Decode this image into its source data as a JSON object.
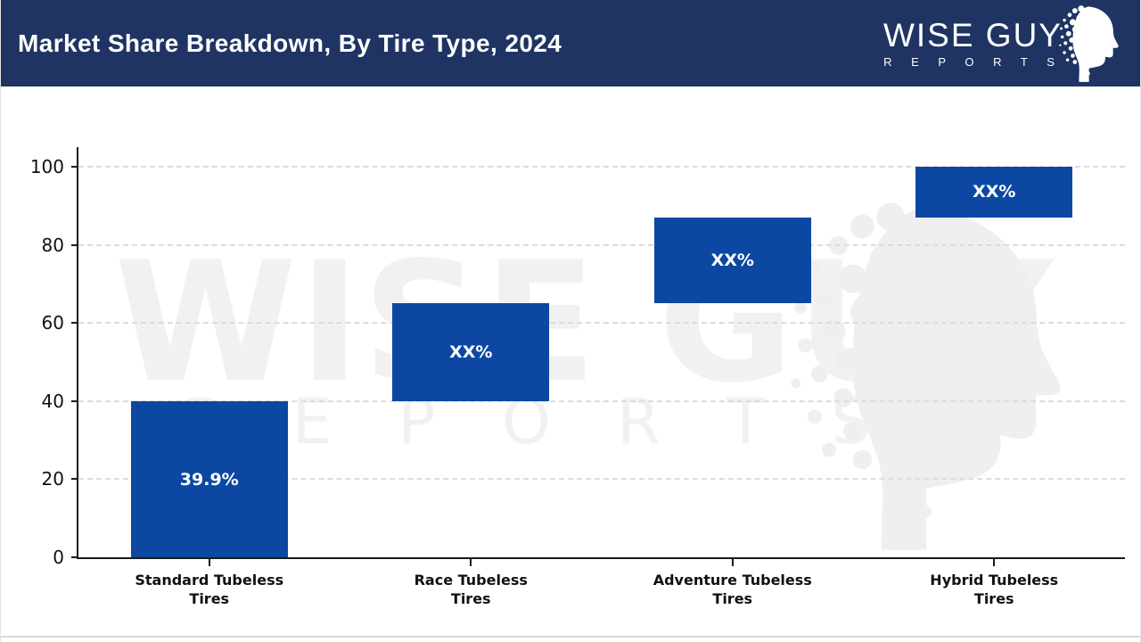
{
  "header": {
    "title": "Market Share Breakdown, By Tire Type, 2024",
    "bg_color": "#1f3463",
    "logo": {
      "line1": "WISE GUY",
      "line2": "R E P O R T S"
    }
  },
  "watermark": {
    "line1": "WISE GUY",
    "line2": "R E P O R T S"
  },
  "chart_data": {
    "type": "bar",
    "subtype": "waterfall",
    "title": "Market Share Breakdown, By Tire Type, 2024",
    "categories": [
      {
        "line1": "Standard Tubeless",
        "line2": "Tires"
      },
      {
        "line1": "Race Tubeless",
        "line2": "Tires"
      },
      {
        "line1": "Adventure Tubeless",
        "line2": "Tires"
      },
      {
        "line1": "Hybrid Tubeless",
        "line2": "Tires"
      }
    ],
    "segments": [
      {
        "category": "Standard Tubeless Tires",
        "start": 0,
        "end": 39.9,
        "label": "39.9%"
      },
      {
        "category": "Race Tubeless Tires",
        "start": 39.9,
        "end": 65,
        "label": "XX%"
      },
      {
        "category": "Adventure Tubeless Tires",
        "start": 65,
        "end": 87,
        "label": "XX%"
      },
      {
        "category": "Hybrid Tubeless Tires",
        "start": 87,
        "end": 100,
        "label": "XX%"
      }
    ],
    "xlabel": "",
    "ylabel": "",
    "ylim": [
      0,
      105
    ],
    "yticks": [
      0,
      20,
      40,
      60,
      80,
      100
    ],
    "grid": "horizontal-dashed",
    "legend": "none",
    "colors": {
      "bar": "#0c48a2",
      "bar_label": "#ffffff",
      "axis": "#1a1a1a",
      "gridline": "#dcdcdc",
      "header_bg": "#1f3463",
      "watermark": "#f1f1f3"
    }
  }
}
